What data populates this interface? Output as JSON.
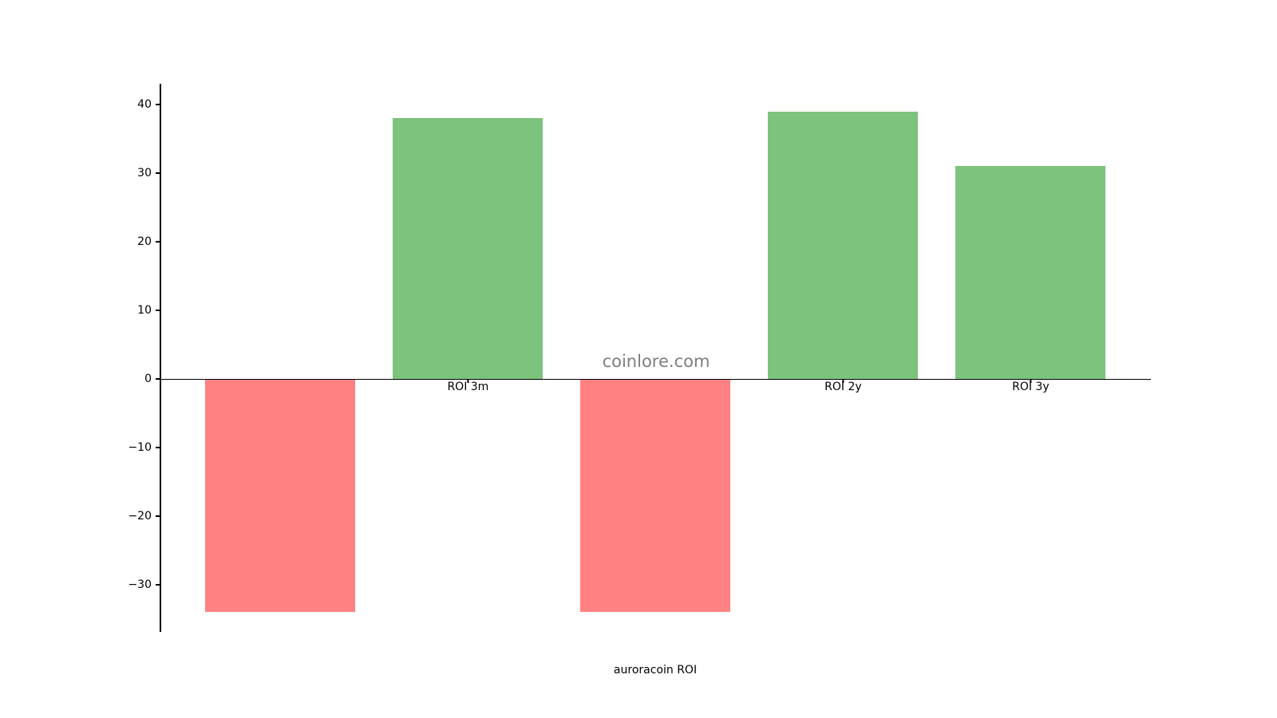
{
  "watermark": {
    "text": "coinlore.com",
    "color": "#7e7e7e"
  },
  "chart_data": {
    "type": "bar",
    "xlabel": "auroracoin ROI",
    "ylabel": "",
    "categories": [
      "",
      "ROI 3m",
      "",
      "ROI 2y",
      "ROI 3y"
    ],
    "values": [
      -34,
      38,
      -34,
      39,
      31
    ],
    "series": [
      {
        "name": "auroracoin ROI",
        "values": [
          -34,
          38,
          -34,
          39,
          31
        ]
      }
    ],
    "positive_color": "#7dc37d",
    "negative_color": "#ff8181",
    "axis_color": "#000000",
    "yticks": [
      40,
      30,
      20,
      10,
      0,
      -10,
      -20,
      -30
    ],
    "ytick_labels": [
      "40",
      "30",
      "20",
      "10",
      "0",
      "−10",
      "−20",
      "−30"
    ],
    "ylim": [
      -36.5,
      43
    ],
    "grid": false,
    "legend": null,
    "bar_occlusion_note": "labels of negative bars hidden behind bars"
  }
}
